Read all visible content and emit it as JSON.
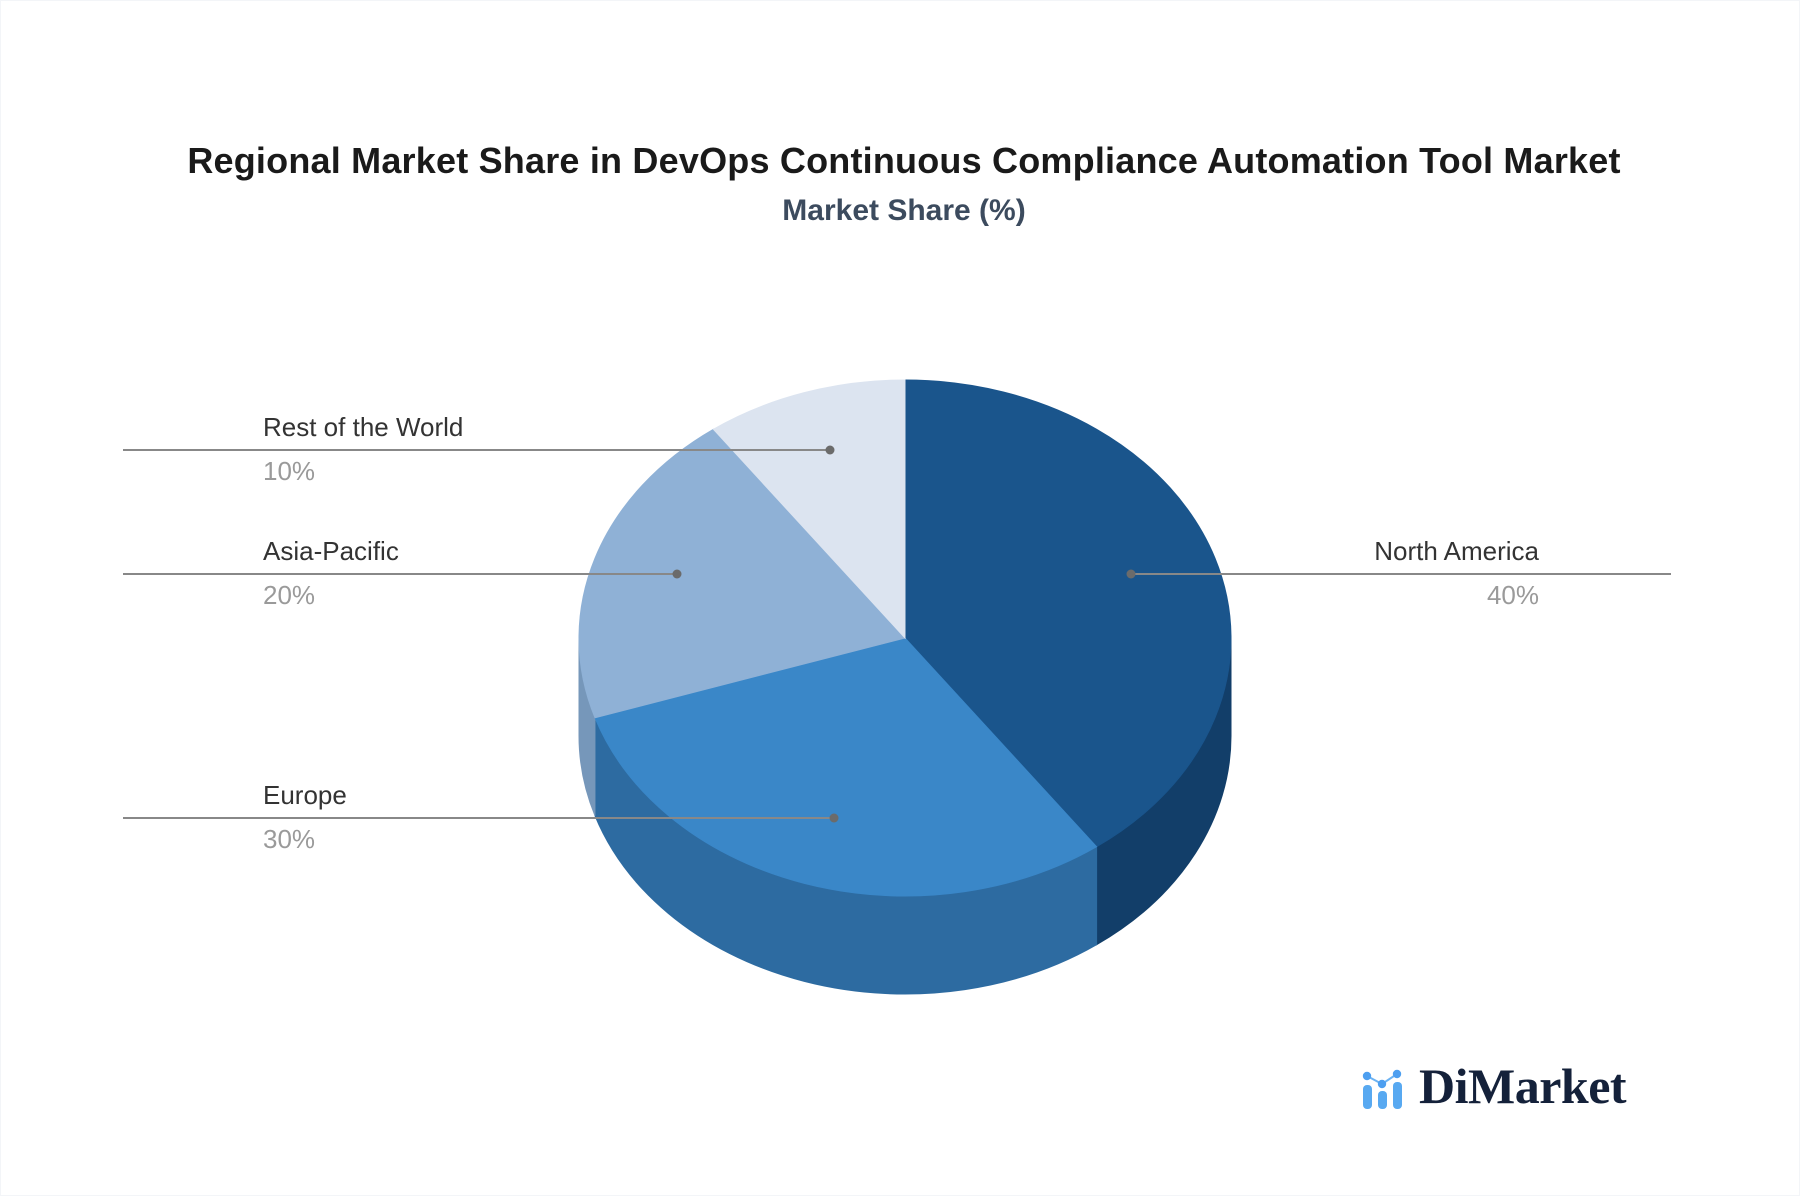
{
  "title": "Regional Market Share in DevOps Continuous Compliance Automation Tool Market",
  "subtitle": "Market Share (%)",
  "brand": {
    "name": "DiMarket",
    "icon": "bar-chart-logo-icon",
    "text_color": "#14213a",
    "accent_color": "#58a9f1"
  },
  "chart_data": {
    "type": "pie",
    "style": "3d",
    "title": "Regional Market Share in DevOps Continuous Compliance Automation Tool Market",
    "subtitle": "Market Share (%)",
    "unit": "%",
    "start_angle_deg": 0,
    "direction": "clockwise",
    "legend_position": "none",
    "slices": [
      {
        "label": "North America",
        "value": 40,
        "value_label": "40%",
        "color": "#1a558c",
        "side_color": "#123e69"
      },
      {
        "label": "Europe",
        "value": 30,
        "value_label": "30%",
        "color": "#3a87c8",
        "side_color": "#2d6ba1"
      },
      {
        "label": "Asia-Pacific",
        "value": 20,
        "value_label": "20%",
        "color": "#8fb1d6",
        "side_color": "#7697ba"
      },
      {
        "label": "Rest of the World",
        "value": 10,
        "value_label": "10%",
        "color": "#dce4f0",
        "side_color": "#b9c6da"
      }
    ],
    "label_name_color": "#333333",
    "label_value_color": "#9a9a9a",
    "leader_line_color": "#888888",
    "leader_dot_color": "#6b6b6b",
    "title_color": "#1a1a1a",
    "subtitle_color": "#3c4b5e"
  }
}
